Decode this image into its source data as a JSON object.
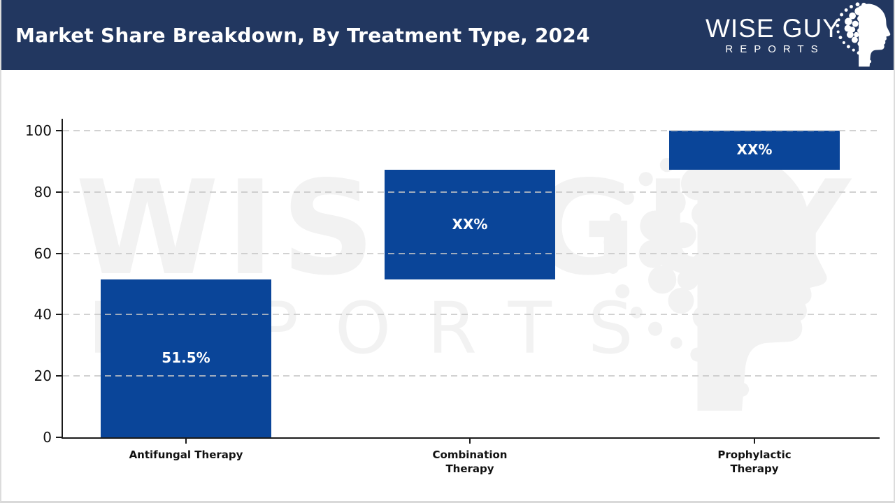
{
  "header": {
    "title": "Market Share Breakdown, By Treatment Type, 2024",
    "logo": {
      "line1": "WISE GUY",
      "line2": "REPORTS"
    }
  },
  "watermark": {
    "line1": "WISE GUY",
    "line2": "REPORTS"
  },
  "colors": {
    "header_bg": "#223760",
    "bar": "#0a4599",
    "grid": "#c6c6c6",
    "axis": "#1a1a1a",
    "watermark": "#f2f2f2",
    "bar_label_text": "#ffffff"
  },
  "chart_data": {
    "type": "bar",
    "variant": "floating-segment-waterfall",
    "title": "Market Share Breakdown, By Treatment Type, 2024",
    "categories": [
      "Antifungal Therapy",
      "Combination Therapy",
      "Prophylactic Therapy"
    ],
    "category_tick_lines": [
      [
        "Antifungal Therapy"
      ],
      [
        "Combination",
        "Therapy"
      ],
      [
        "Prophylactic",
        "Therapy"
      ]
    ],
    "segments": [
      {
        "category": "Antifungal Therapy",
        "start": 0,
        "end": 51.5,
        "label": "51.5%"
      },
      {
        "category": "Combination Therapy",
        "start": 51.5,
        "end": 87.2,
        "label": "XX%"
      },
      {
        "category": "Prophylactic Therapy",
        "start": 87.2,
        "end": 100,
        "label": "XX%"
      }
    ],
    "xlabel": "",
    "ylabel": "",
    "ylim": [
      0,
      100
    ],
    "yticks": [
      0,
      20,
      40,
      60,
      80,
      100
    ],
    "grid": "dashed-horizontal",
    "legend": "none"
  }
}
